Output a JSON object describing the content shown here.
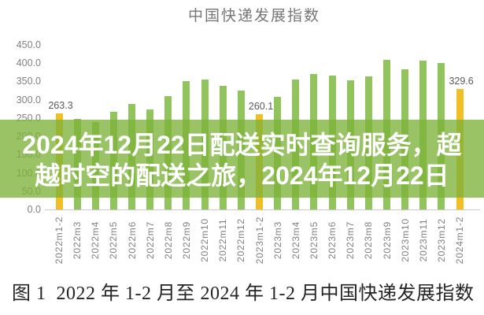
{
  "title": "中国快递发展指数",
  "overlay": {
    "line1": "2024年12月22日配送实时查询服务，超",
    "line2": "越时空的配送之旅，2024年12月22日",
    "bg_color": "#7CB23A",
    "bg_opacity": 0.78,
    "text_color": "#FFFFFF"
  },
  "caption": "图 1  2022 年 1-2 月至 2024 年 1-2 月中国快递发展指数",
  "colors": {
    "title_color": "#767676",
    "axis_label_color": "#808080",
    "value_label_color": "#595959",
    "axis_line_color": "#C9C9C9",
    "caption_color": "#242424"
  },
  "chart_data": {
    "type": "bar",
    "title": "中国快递发展指数",
    "categories": [
      "2022m1-2",
      "2022m3",
      "2022m4",
      "2022m5",
      "2022m6",
      "2022m7",
      "2022m8",
      "2022m9",
      "2022m10",
      "2022m11",
      "2022m12",
      "2023m1-2",
      "2023m3",
      "2023m4",
      "2023m5",
      "2023m6",
      "2023m7",
      "2023m8",
      "2023m9",
      "2023m10",
      "2023m11",
      "2023m12",
      "2024m1-2"
    ],
    "values": [
      263.3,
      248,
      240,
      266,
      288,
      273,
      310,
      350,
      356,
      337,
      325,
      260.1,
      307,
      355,
      371,
      366,
      353,
      363,
      409,
      383,
      407,
      400,
      329.6
    ],
    "labeled_points": [
      {
        "index": 0,
        "text": "263.3"
      },
      {
        "index": 11,
        "text": "260.1"
      },
      {
        "index": 22,
        "text": "329.6"
      }
    ],
    "highlight_indices": [
      0,
      11,
      22
    ],
    "bar_color_default": "#92C45E",
    "bar_color_highlight": "#F0BE25",
    "yticks": [
      "450.0",
      "400.0",
      "350.0",
      "300.0",
      "250.0",
      "200.0",
      "150.0",
      "100.0",
      "50.0",
      "0.0"
    ],
    "ylim": [
      0,
      450
    ],
    "grid": false,
    "legend": false,
    "xlabel": "",
    "ylabel": ""
  }
}
